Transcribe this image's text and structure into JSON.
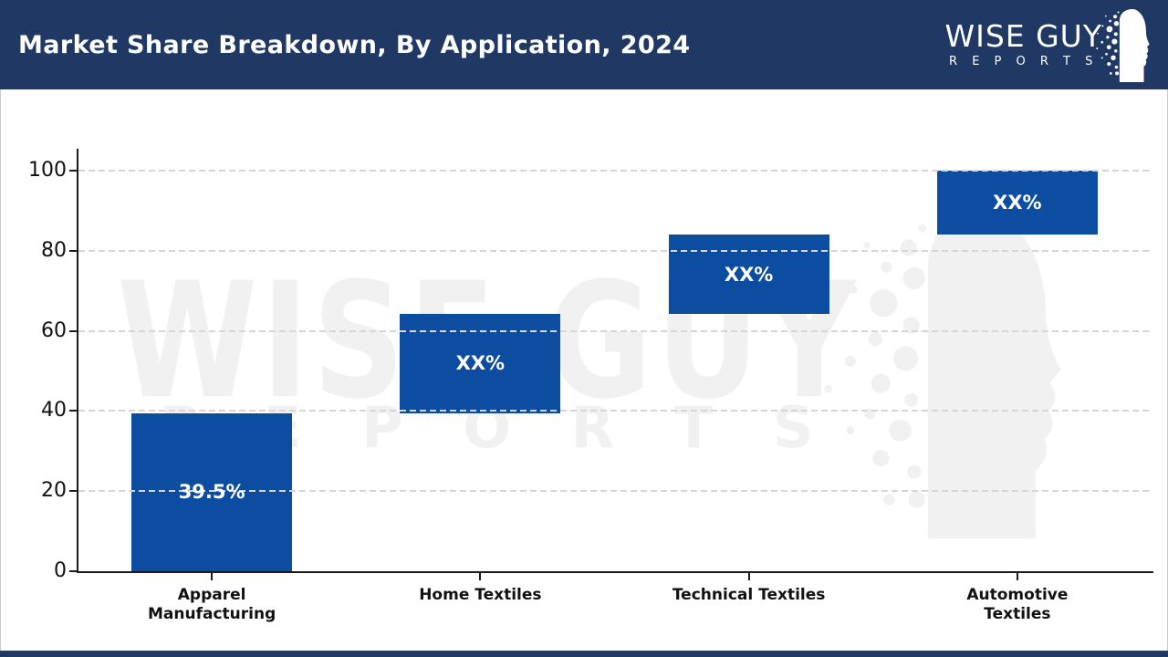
{
  "header": {
    "title": "Market Share Breakdown, By Application, 2024",
    "logo": {
      "name": "WISE GUY",
      "tagline": "R E P O R T S"
    }
  },
  "watermark": {
    "text_primary": "WISE GUY",
    "text_secondary": "R E P O R T S"
  },
  "colors": {
    "header_bg": "#1f3864",
    "bar_fill": "#0c4da2",
    "bar_label": "#ffffff",
    "gridline": "#d6d6d6",
    "axis": "#1c1c1c",
    "tick_label": "#111111",
    "watermark": "#f1f1f1"
  },
  "chart_data": {
    "type": "waterfall",
    "title": "Market Share Breakdown, By Application, 2024",
    "categories": [
      "Apparel\nManufacturing",
      "Home Textiles",
      "Technical Textiles",
      "Automotive\nTextiles"
    ],
    "segments": [
      {
        "label": "39.5%",
        "start": 0,
        "end": 39.5
      },
      {
        "label": "XX%",
        "start": 39.5,
        "end": 64.2
      },
      {
        "label": "XX%",
        "start": 64.2,
        "end": 84
      },
      {
        "label": "XX%",
        "start": 84,
        "end": 100
      }
    ],
    "y_ticks": [
      0,
      20,
      40,
      60,
      80,
      100
    ],
    "ylim": [
      0,
      105.5
    ],
    "xlabel": "",
    "ylabel": "",
    "grid": "horizontal-dashed",
    "legend": "none"
  }
}
